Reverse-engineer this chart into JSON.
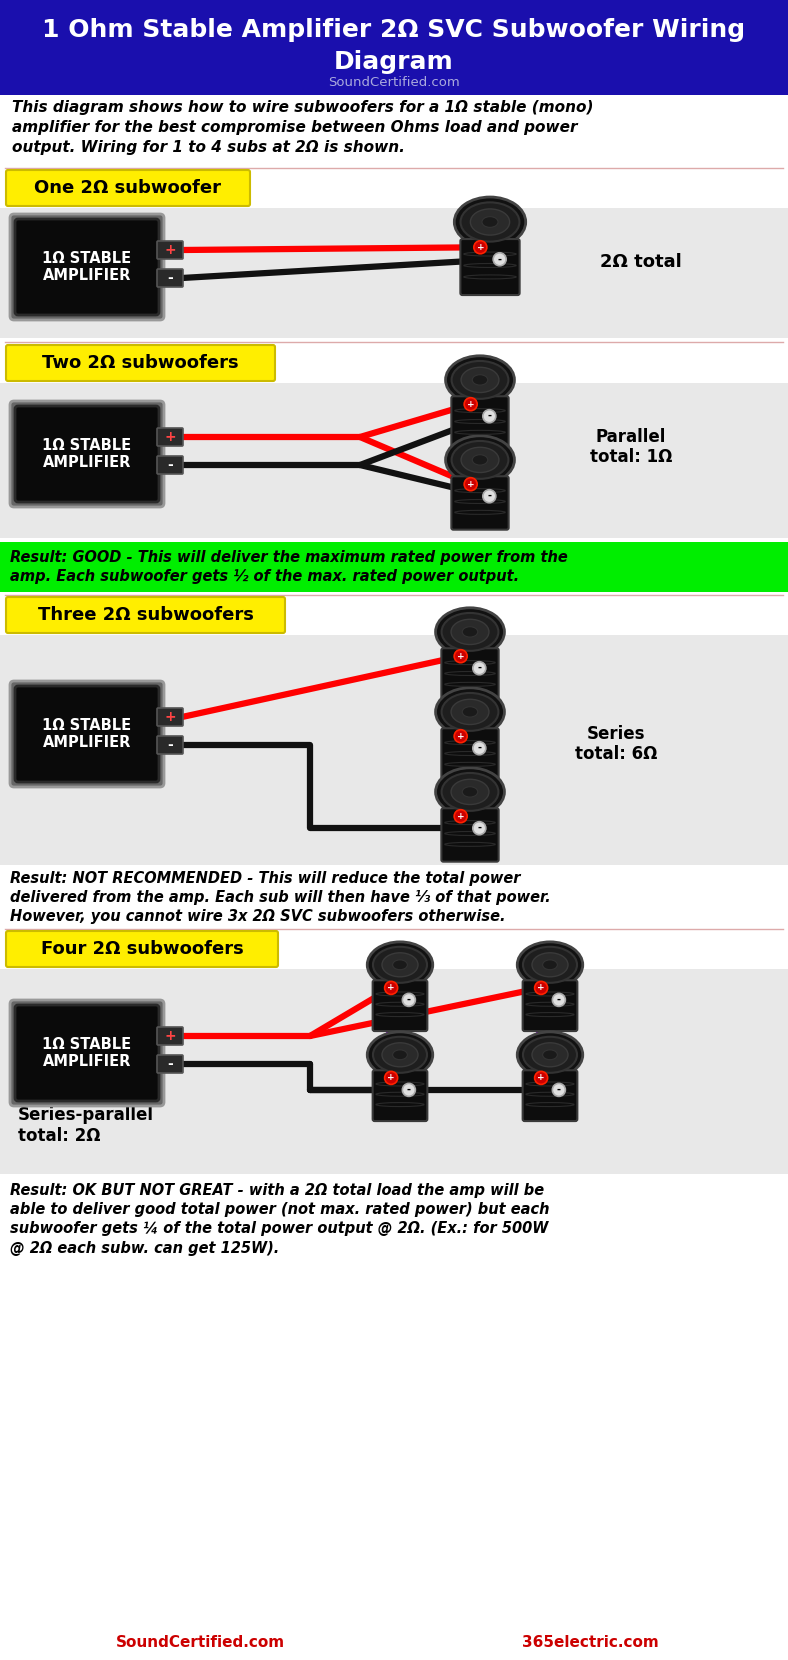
{
  "title_line1": "1 Ohm Stable Amplifier 2Ω SVC Subwoofer Wiring",
  "title_line2": "Diagram",
  "title_subtitle": "SoundCertified.com",
  "title_bg": "#1a0fad",
  "title_color": "#ffffff",
  "subtitle_color": "#aaaadd",
  "description": "This diagram shows how to wire subwoofers for a 1Ω stable (mono)\namplifier for the best compromise between Ohms load and power\noutput. Wiring for 1 to 4 subs at 2Ω is shown.",
  "bg_color": "#ffffff",
  "wire_red": "#ff0000",
  "wire_black": "#111111",
  "wire_purple": "#8800cc",
  "footer_left": "SoundCertified.com",
  "footer_right": "365electric.com",
  "footer_color": "#cc0000",
  "sec1_label": "One 2Ω subwoofer",
  "sec2_label": "Two 2Ω subwoofers",
  "sec3_label": "Three 2Ω subwoofers",
  "sec4_label": "Four 2Ω subwoofers",
  "sec1_total": "2Ω total",
  "sec2_total": "Parallel\ntotal: 1Ω",
  "sec3_total": "Series\ntotal: 6Ω",
  "sec4_total": "Series-parallel\ntotal: 2Ω",
  "result2": "Result: GOOD - This will deliver the maximum rated power from the\namp. Each subwoofer gets ½ of the max. rated power output.",
  "result2_bg": "#00ee00",
  "result3": "Result: NOT RECOMMENDED - This will reduce the total power\ndelivered from the amp. Each sub will then have ⅓ of that power.\nHowever, you cannot wire 3x 2Ω SVC subwoofers otherwise.",
  "result4": "Result: OK BUT NOT GREAT - with a 2Ω total load the amp will be\nable to deliver good total power (not max. rated power) but each\nsubwoofer gets ¼ of the total power output @ 2Ω. (Ex.: for 500W\n@ 2Ω each subw. can get 125W).",
  "amp_text": "1Ω STABLE\nAMPLIFIER"
}
